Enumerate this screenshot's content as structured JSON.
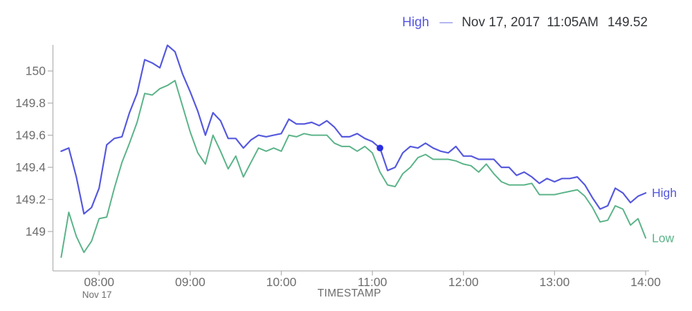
{
  "legend": {
    "series": "High",
    "dash": "—",
    "date": "Nov 17, 2017",
    "time": "11:05AM",
    "value": "149.52"
  },
  "colors": {
    "high_line": "#5558dd",
    "low_line": "#5ab388",
    "legend_series": "#5456e2",
    "legend_dash": "#8a8ce8",
    "legend_text": "#33363a",
    "marker": "#282ee0",
    "axis": "#b3b3b3",
    "tick_label": "#6e6e6e",
    "axis_title": "#6b6b6b",
    "background": "#ffffff"
  },
  "chart_data": {
    "type": "line",
    "title": "",
    "xlabel": "TIMESTAMP",
    "ylabel": "",
    "grid": false,
    "legend_position": "top-right",
    "ylim": [
      148.75,
      150.17
    ],
    "y_ticks": [
      149,
      149.2,
      149.4,
      149.6,
      149.8,
      150
    ],
    "y_tick_labels": [
      "149",
      "149.2",
      "149.4",
      "149.6",
      "149.8",
      "150"
    ],
    "x_ticks": [
      "08:00",
      "09:00",
      "10:00",
      "11:00",
      "12:00",
      "13:00",
      "14:00"
    ],
    "x_tick_sub_label": "Nov 17",
    "x": [
      "07:35",
      "07:40",
      "07:45",
      "07:50",
      "07:55",
      "08:00",
      "08:05",
      "08:10",
      "08:15",
      "08:20",
      "08:25",
      "08:30",
      "08:35",
      "08:40",
      "08:45",
      "08:50",
      "08:55",
      "09:00",
      "09:05",
      "09:10",
      "09:15",
      "09:20",
      "09:25",
      "09:30",
      "09:35",
      "09:40",
      "09:45",
      "09:50",
      "09:55",
      "10:00",
      "10:05",
      "10:10",
      "10:15",
      "10:20",
      "10:25",
      "10:30",
      "10:35",
      "10:40",
      "10:45",
      "10:50",
      "10:55",
      "11:00",
      "11:05",
      "11:10",
      "11:15",
      "11:20",
      "11:25",
      "11:30",
      "11:35",
      "11:40",
      "11:45",
      "11:50",
      "11:55",
      "12:00",
      "12:05",
      "12:10",
      "12:15",
      "12:20",
      "12:25",
      "12:30",
      "12:35",
      "12:40",
      "12:45",
      "12:50",
      "12:55",
      "13:00",
      "13:05",
      "13:10",
      "13:15",
      "13:20",
      "13:25",
      "13:30",
      "13:35",
      "13:40",
      "13:45",
      "13:50",
      "13:55",
      "14:00"
    ],
    "series": [
      {
        "name": "High",
        "color_key": "high_line",
        "values": [
          149.5,
          149.52,
          149.34,
          149.11,
          149.15,
          149.27,
          149.54,
          149.58,
          149.59,
          149.74,
          149.86,
          150.07,
          150.05,
          150.02,
          150.16,
          150.12,
          149.98,
          149.87,
          149.75,
          149.6,
          149.74,
          149.69,
          149.58,
          149.58,
          149.52,
          149.57,
          149.6,
          149.59,
          149.6,
          149.61,
          149.7,
          149.67,
          149.67,
          149.68,
          149.66,
          149.69,
          149.65,
          149.59,
          149.59,
          149.61,
          149.58,
          149.56,
          149.52,
          149.38,
          149.4,
          149.49,
          149.53,
          149.52,
          149.55,
          149.52,
          149.5,
          149.49,
          149.53,
          149.47,
          149.47,
          149.45,
          149.45,
          149.45,
          149.4,
          149.4,
          149.35,
          149.37,
          149.34,
          149.3,
          149.33,
          149.31,
          149.33,
          149.33,
          149.34,
          149.29,
          149.21,
          149.14,
          149.16,
          149.27,
          149.24,
          149.18,
          149.22,
          149.24
        ]
      },
      {
        "name": "Low",
        "color_key": "low_line",
        "values": [
          148.84,
          149.12,
          148.97,
          148.87,
          148.94,
          149.08,
          149.09,
          149.27,
          149.43,
          149.55,
          149.68,
          149.86,
          149.85,
          149.89,
          149.91,
          149.94,
          149.78,
          149.62,
          149.49,
          149.42,
          149.6,
          149.5,
          149.39,
          149.47,
          149.34,
          149.43,
          149.52,
          149.5,
          149.52,
          149.5,
          149.6,
          149.59,
          149.61,
          149.6,
          149.6,
          149.6,
          149.55,
          149.53,
          149.53,
          149.5,
          149.53,
          149.49,
          149.37,
          149.29,
          149.28,
          149.36,
          149.4,
          149.46,
          149.48,
          149.45,
          149.45,
          149.45,
          149.44,
          149.42,
          149.41,
          149.37,
          149.42,
          149.36,
          149.31,
          149.29,
          149.29,
          149.29,
          149.3,
          149.23,
          149.23,
          149.23,
          149.24,
          149.25,
          149.26,
          149.22,
          149.15,
          149.06,
          149.07,
          149.16,
          149.14,
          149.04,
          149.08,
          148.96
        ]
      }
    ],
    "end_labels": [
      "High",
      "Low"
    ],
    "highlight": {
      "series": "High",
      "x": "11:05",
      "value": 149.52
    }
  }
}
